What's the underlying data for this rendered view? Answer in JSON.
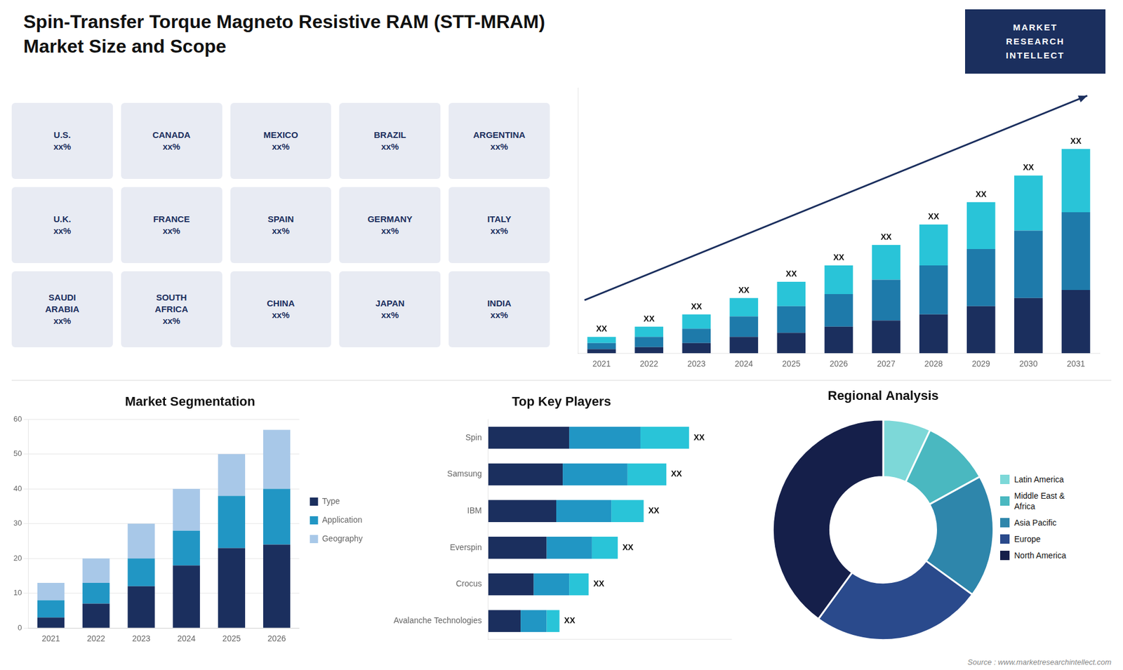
{
  "chart_data": [
    {
      "type": "bar",
      "title": "Spin-Transfer Torque Magneto Resistive RAM (STT-MRAM)",
      "subtitle": "Market Size and Scope",
      "categories": [
        "2021",
        "2022",
        "2023",
        "2024",
        "2025",
        "2026",
        "2027",
        "2028",
        "2029",
        "2030",
        "2031"
      ],
      "series": [
        {
          "color": "#1b2f5e",
          "values": [
            2,
            3,
            5,
            8,
            10,
            13,
            16,
            19,
            23,
            27,
            31
          ]
        },
        {
          "color": "#1e7aaa",
          "values": [
            3,
            5,
            7,
            10,
            13,
            16,
            20,
            24,
            28,
            33,
            38
          ]
        },
        {
          "color": "#29c4d8",
          "values": [
            3,
            5,
            7,
            9,
            12,
            14,
            17,
            20,
            23,
            27,
            31
          ]
        }
      ],
      "stacked": true,
      "ylim": [
        0,
        130
      ],
      "grid": false,
      "tick_labels": "x",
      "annotations": [
        "XX",
        "XX",
        "XX",
        "XX",
        "XX",
        "XX",
        "XX",
        "XX",
        "XX",
        "XX",
        "XX"
      ]
    },
    {
      "type": "map",
      "annotations": [
        "U.S.\nxx%",
        "CANADA\nxx%",
        "MEXICO\nxx%",
        "BRAZIL\nxx%",
        "ARGENTINA\nxx%",
        "U.K.\nxx%",
        "FRANCE\nxx%",
        "SPAIN\nxx%",
        "GERMANY\nxx%",
        "ITALY\nxx%",
        "SAUDI\nARABIA\nxx%",
        "SOUTH\nAFRICA\nxx%",
        "CHINA\nxx%",
        "JAPAN\nxx%",
        "INDIA\nxx%"
      ]
    },
    {
      "type": "logo",
      "annotations": [
        "MARKET",
        "RESEARCH",
        "INTELLECT"
      ]
    },
    {
      "type": "bar",
      "title": "Market Segmentation",
      "categories": [
        "2021",
        "2022",
        "2023",
        "2024",
        "2025",
        "2026"
      ],
      "series": [
        {
          "name": "Type",
          "color": "#1b2f5e",
          "values": [
            3,
            7,
            12,
            18,
            23,
            24
          ]
        },
        {
          "name": "Application",
          "color": "#2196c4",
          "values": [
            5,
            6,
            8,
            10,
            15,
            16
          ]
        },
        {
          "name": "Geography",
          "color": "#a8c8e8",
          "values": [
            5,
            7,
            10,
            12,
            12,
            17
          ]
        }
      ],
      "stacked": true,
      "ylim": [
        0,
        60
      ],
      "yticks": [
        0,
        10,
        20,
        30,
        40,
        50,
        60
      ],
      "grid": true,
      "legend": "right"
    },
    {
      "type": "bar",
      "title": "Top Key Players",
      "orientation": "horizontal",
      "categories": [
        "Spin",
        "Samsung",
        "IBM",
        "Everspin",
        "Crocus",
        "Avalanche Technologies"
      ],
      "series": [
        {
          "color": "#1b2f5e",
          "values": [
            25,
            23,
            21,
            18,
            14,
            10
          ]
        },
        {
          "color": "#2196c4",
          "values": [
            22,
            20,
            17,
            14,
            11,
            8
          ]
        },
        {
          "color": "#29c4d8",
          "values": [
            15,
            12,
            10,
            8,
            6,
            4
          ]
        }
      ],
      "stacked": true,
      "xlim": [
        0,
        75
      ],
      "grid": false,
      "tick_labels": "y",
      "annotations": [
        "XX",
        "XX",
        "XX",
        "XX",
        "XX",
        "XX"
      ]
    },
    {
      "type": "doughnut",
      "title": "Regional Analysis",
      "categories": [
        "Latin America",
        "Middle East &\nAfrica",
        "Asia Pacific",
        "Europe",
        "North America"
      ],
      "values": [
        7,
        10,
        18,
        25,
        40
      ],
      "colors": [
        "#7dd8d8",
        "#4ab8c0",
        "#2e86ab",
        "#2a4a8c",
        "#151f4a"
      ],
      "legend": "right"
    },
    {
      "type": "note",
      "annotations": [
        "Source : www.marketresearchintellect.com"
      ]
    }
  ]
}
